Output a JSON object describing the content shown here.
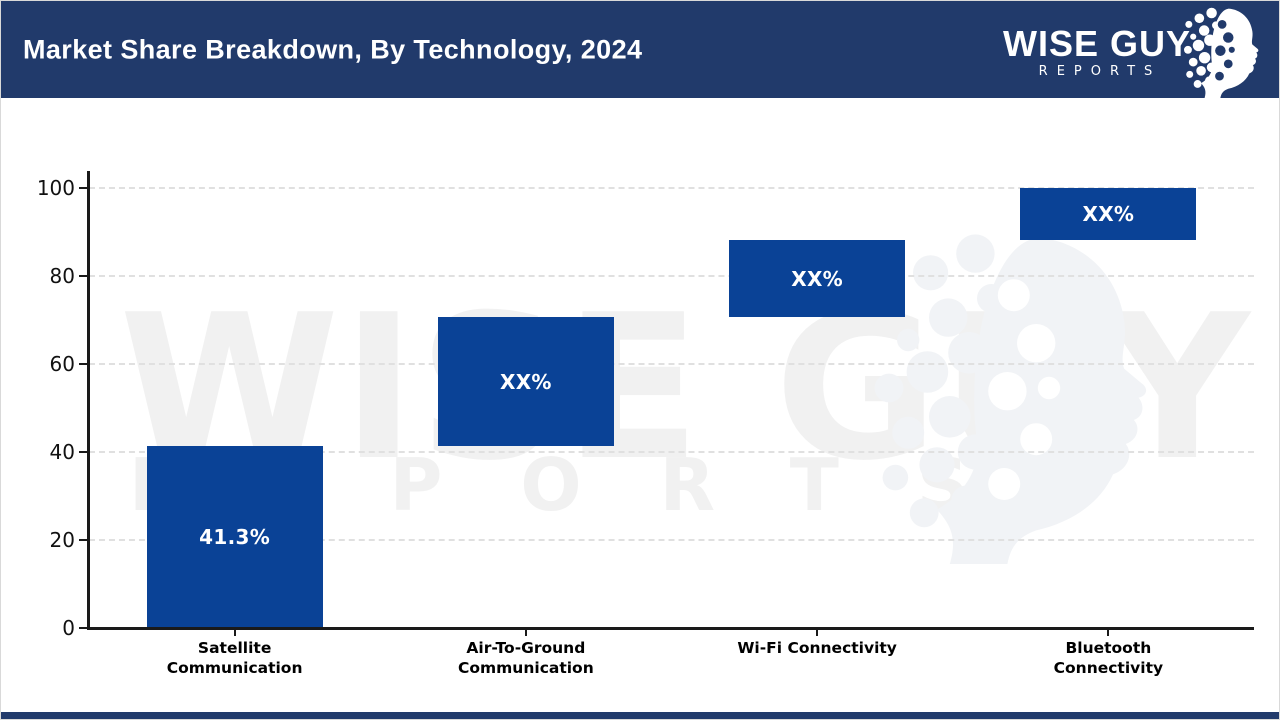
{
  "header": {
    "title": "Market Share Breakdown, By Technology, 2024",
    "logo": {
      "name": "WISE GUY",
      "tagline": "REPORTS"
    }
  },
  "watermark": {
    "line1": "WISE GUY",
    "line2": "REPORTS"
  },
  "icons": {
    "header_logo": "head-profile-dots-icon",
    "watermark": "head-profile-dots-icon"
  },
  "theme": {
    "header_bg": "#213a6b",
    "footer_bg": "#213a6b",
    "title_color": "#ffffff",
    "bar_color": "#0a4296",
    "bar_label_color": "#ffffff",
    "grid_color": "#e0e0e0",
    "axis_color": "#1a1a1a",
    "tick_text_color": "#111111",
    "watermark_color": "#f1f1f1"
  },
  "chart_data": {
    "type": "bar",
    "subtype": "stacked-percentage-waterfall",
    "title": "Market Share Breakdown, By Technology, 2024",
    "xlabel": "",
    "ylabel": "",
    "ylim": [
      0,
      100
    ],
    "yticks": [
      0,
      20,
      40,
      60,
      80,
      100
    ],
    "grid": {
      "axis": "y",
      "style": "dashed",
      "color": "#e0e0e0"
    },
    "legend": "none",
    "bar_color": "#0a4296",
    "categories": [
      [
        "Satellite",
        "Communication"
      ],
      [
        "Air-To-Ground",
        "Communication"
      ],
      [
        "Wi-Fi Connectivity"
      ],
      [
        "Bluetooth",
        "Connectivity"
      ]
    ],
    "segments": [
      {
        "category": "Satellite Communication",
        "start": 0,
        "end": 41.3,
        "value": 41.3,
        "label": "41.3%"
      },
      {
        "category": "Air-To-Ground Communication",
        "start": 41.3,
        "end": 70.6,
        "value": 29.3,
        "label": "XX%"
      },
      {
        "category": "Wi-Fi Connectivity",
        "start": 70.6,
        "end": 88.2,
        "value": 17.6,
        "label": "XX%"
      },
      {
        "category": "Bluetooth Connectivity",
        "start": 88.2,
        "end": 100,
        "value": 11.8,
        "label": "XX%"
      }
    ]
  }
}
